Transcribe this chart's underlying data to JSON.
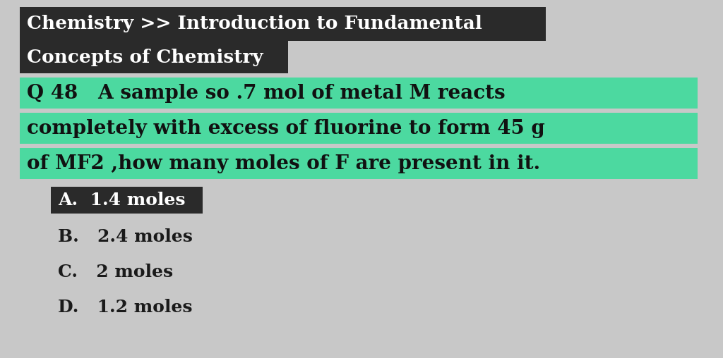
{
  "bg_color": "#c8c8c8",
  "title_line1": "Chemistry >> Introduction to Fundamental",
  "title_line2": "Concepts of Chemistry",
  "title_bg": "#2a2a2a",
  "title_text_color": "#ffffff",
  "question_line1": "Q 48   A sample so .7 mol of metal M reacts",
  "question_line2": "completely with excess of fluorine to form 45 g",
  "question_line3": "of MF2 ,how many moles of F are present in it.",
  "question_highlight": "#4cd9a0",
  "question_text_color": "#111111",
  "answer_A_text": "A.  1.4 moles",
  "answer_A_bg": "#2a2a2a",
  "answer_A_text_color": "#ffffff",
  "answer_B": "B.   2.4 moles",
  "answer_C": "C.   2 moles",
  "answer_D": "D.   1.2 moles",
  "other_answer_color": "#1a1a1a",
  "font_size_title": 19,
  "font_size_question": 20,
  "font_size_answers": 18
}
